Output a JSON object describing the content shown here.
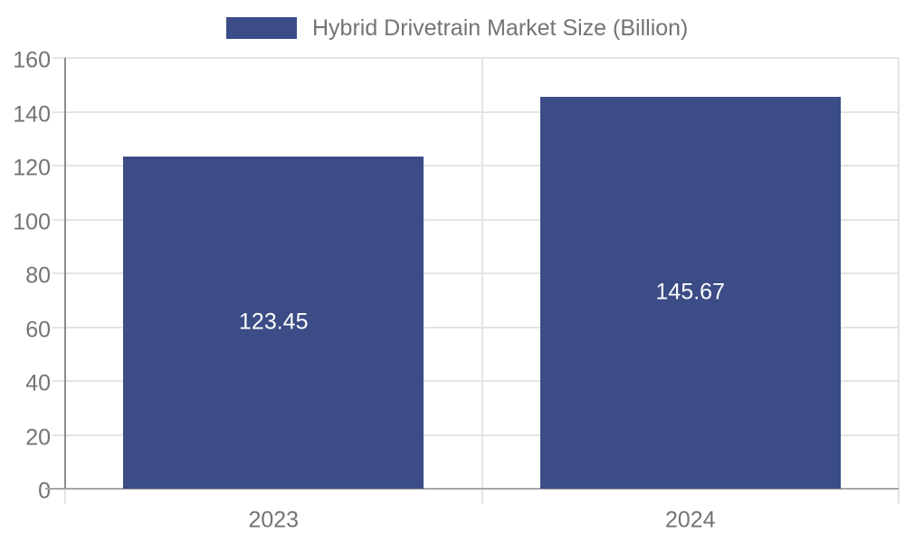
{
  "legend": {
    "label": "Hybrid Drivetrain Market Size (Billion)"
  },
  "chart_data": {
    "type": "bar",
    "title": "Hybrid Drivetrain Market Size (Billion)",
    "categories": [
      "2023",
      "2024"
    ],
    "series": [
      {
        "name": "Hybrid Drivetrain Market Size (Billion)",
        "values": [
          123.45,
          145.67
        ]
      }
    ],
    "value_labels": [
      "123.45",
      "145.67"
    ],
    "xlabel": "",
    "ylabel": "",
    "ylim": [
      0,
      160
    ],
    "yticks": [
      0,
      20,
      40,
      60,
      80,
      100,
      120,
      140,
      160
    ],
    "grid": true,
    "legend_position": "top-center",
    "colors": {
      "bar": "#3b4c86",
      "value_label": "#ffffff",
      "axis_text": "#747474",
      "gridline": "#e4e4e7",
      "x_axis_line": "#a5a5a5",
      "y_axis_line": "#8c8c8c",
      "background": "#ffffff"
    }
  }
}
